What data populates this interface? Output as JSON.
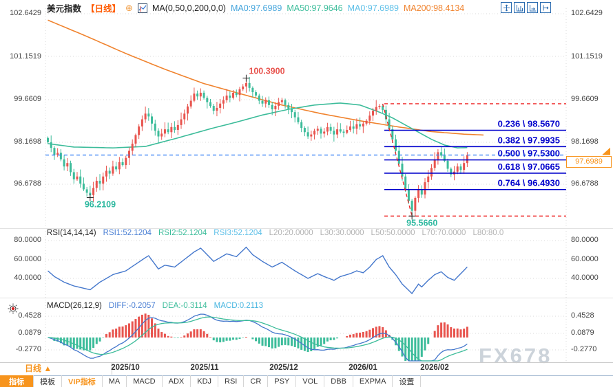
{
  "header": {
    "symbol": "美元指数",
    "period_tag": "【日线】",
    "ma_settings": "MA(0,50,0,200,0,0)",
    "ma_values": [
      {
        "label": "MA0:97.6989",
        "color": "#45a5dc"
      },
      {
        "label": "MA50:97.9646",
        "color": "#3dbd9b"
      },
      {
        "label": "MA0:97.6989",
        "color": "#5fc0e8"
      },
      {
        "label": "MA200:98.4134",
        "color": "#f0832e"
      }
    ]
  },
  "icons": {
    "header_buttons": [
      "pan-icon",
      "axis-zoom-icon",
      "axis-pan-icon",
      "jump-latest-icon"
    ],
    "add_indicator": "circle-plus-icon",
    "chart_type": "candlestick-icon",
    "alert": "refresh-alert-icon"
  },
  "price_axis": {
    "labels": [
      "102.6429",
      "101.1519",
      "99.6609",
      "98.1698",
      "96.6788"
    ]
  },
  "rsi_axis": {
    "labels": [
      "80.0000",
      "60.0000",
      "40.0000"
    ]
  },
  "macd_axis": {
    "labels": [
      "0.4528",
      "0.0879",
      "-0.2770"
    ]
  },
  "rsi_header": {
    "title": "RSI(14,14,14)",
    "tokens": [
      {
        "label": "RSI1:52.1204",
        "color": "#4a7fd4"
      },
      {
        "label": "RSI2:52.1204",
        "color": "#3dbd9b"
      },
      {
        "label": "RSI3:52.1204",
        "color": "#5fc0e8"
      },
      {
        "label": "L20:20.0000",
        "color": "#b3b3b3"
      },
      {
        "label": "L30:30.0000",
        "color": "#b3b3b3"
      },
      {
        "label": "L50:50.0000",
        "color": "#b3b3b3"
      },
      {
        "label": "L70:70.0000",
        "color": "#b3b3b3"
      },
      {
        "label": "L80:80.0",
        "color": "#b3b3b3"
      }
    ]
  },
  "macd_header": {
    "title": "MACD(26,12,9)",
    "tokens": [
      {
        "label": "DIFF:-0.2057",
        "color": "#4a7fd4"
      },
      {
        "label": "DEA:-0.3114",
        "color": "#3dbd9b"
      },
      {
        "label": "MACD:0.2113",
        "color": "#45b5e0"
      }
    ]
  },
  "x_axis": {
    "period_selector": "日线 ▲",
    "months": [
      "2025/10",
      "2025/11",
      "2025/12",
      "2026/01",
      "2026/02"
    ]
  },
  "bottom_tabs": [
    {
      "label": "指标",
      "state": "active"
    },
    {
      "label": "模板",
      "state": "normal"
    },
    {
      "label": "VIP指标",
      "state": "vip"
    },
    {
      "label": "MA",
      "state": "normal"
    },
    {
      "label": "MACD",
      "state": "normal"
    },
    {
      "label": "ADX",
      "state": "normal"
    },
    {
      "label": "KDJ",
      "state": "normal"
    },
    {
      "label": "RSI",
      "state": "normal"
    },
    {
      "label": "CR",
      "state": "normal"
    },
    {
      "label": "PSY",
      "state": "normal"
    },
    {
      "label": "VOL",
      "state": "normal"
    },
    {
      "label": "DBB",
      "state": "normal"
    },
    {
      "label": "EXPMA",
      "state": "normal"
    },
    {
      "label": "设置",
      "state": "normal"
    }
  ],
  "price_tag": "97.6989",
  "watermark": "FX678",
  "colors": {
    "up": "#e8544e",
    "down": "#3cbc9a",
    "ma50": "#3cbc9a",
    "ma200": "#f0832e",
    "fib": "#0000cc",
    "range_dash": "#ee2222",
    "price_line": "#3b82f6",
    "rsi": "#4477cc",
    "diff": "#4477cc",
    "dea": "#3cbc9a",
    "hist_up": "#e8544e",
    "hist_down": "#3cbc9a",
    "tag": "#f7941d",
    "grid": "#d9d9d9",
    "axis_text": "#444444"
  },
  "chart_data": {
    "type": "candlestick",
    "title": "美元指数 日线",
    "price_axis_ticks": [
      102.6429,
      101.1519,
      99.6609,
      98.1698,
      96.6788
    ],
    "current_price": 97.6989,
    "candles": {
      "first_open": 98.3,
      "closes": [
        98.15,
        97.95,
        97.7,
        97.78,
        97.55,
        97.3,
        97.42,
        97.1,
        96.85,
        96.95,
        96.7,
        96.5,
        96.38,
        96.3,
        96.55,
        96.8,
        96.7,
        96.95,
        97.15,
        97.05,
        97.3,
        97.2,
        97.45,
        97.35,
        97.6,
        97.85,
        98.1,
        98.4,
        98.7,
        98.95,
        99.15,
        99.05,
        98.8,
        98.55,
        98.35,
        98.45,
        98.6,
        98.5,
        98.68,
        98.58,
        98.75,
        98.95,
        99.15,
        99.4,
        99.6,
        99.85,
        99.75,
        99.88,
        99.7,
        99.55,
        99.42,
        99.25,
        99.35,
        99.5,
        99.62,
        99.78,
        99.7,
        99.88,
        99.8,
        100.0,
        100.1,
        100.22,
        100.05,
        99.9,
        99.78,
        99.6,
        99.5,
        99.62,
        99.45,
        99.3,
        99.42,
        99.55,
        99.62,
        99.45,
        99.32,
        99.2,
        99.02,
        98.85,
        98.65,
        98.5,
        98.35,
        98.42,
        98.55,
        98.62,
        98.45,
        98.52,
        98.68,
        98.55,
        98.42,
        98.6,
        98.52,
        98.48,
        98.58,
        98.7,
        98.62,
        98.78,
        98.7,
        98.8,
        98.9,
        99.08,
        99.25,
        99.38,
        99.42,
        99.28,
        98.95,
        98.6,
        98.25,
        97.85,
        97.4,
        96.95,
        96.5,
        96.1,
        95.75,
        96.2,
        96.5,
        96.32,
        96.75,
        96.95,
        97.25,
        97.55,
        97.8,
        97.68,
        97.5,
        97.22,
        97.02,
        97.12,
        97.3,
        97.18,
        97.42,
        97.6989
      ]
    },
    "key_points": [
      {
        "index": 61,
        "price": 100.39,
        "label": "100.3900",
        "color": "#e8544e",
        "position": "above"
      },
      {
        "index": 13,
        "price": 96.2109,
        "label": "96.2109",
        "color": "#2fb9a0",
        "position": "below"
      },
      {
        "index": 103,
        "price": 99.4939,
        "label": "",
        "color": "#ee2222",
        "position": "none"
      },
      {
        "index": 112,
        "price": 95.566,
        "label": "95.5660",
        "color": "#2fb9a0",
        "position": "below"
      }
    ],
    "fib_levels": [
      {
        "ratio": 0.236,
        "price": 98.567,
        "label": "0.236 \\ 98.5670"
      },
      {
        "ratio": 0.382,
        "price": 97.9935,
        "label": "0.382 \\ 97.9935"
      },
      {
        "ratio": 0.5,
        "price": 97.53,
        "label": "0.500 \\ 97.5300"
      },
      {
        "ratio": 0.618,
        "price": 97.0665,
        "label": "0.618 \\ 97.0665"
      },
      {
        "ratio": 0.764,
        "price": 96.493,
        "label": "0.764 \\ 96.4930"
      }
    ],
    "range_box": {
      "high": 99.4939,
      "low": 95.566,
      "from_index": 103,
      "to_index": 112
    },
    "ma50_anchors": [
      [
        0,
        98.1
      ],
      [
        8,
        97.98
      ],
      [
        20,
        97.95
      ],
      [
        30,
        98.0
      ],
      [
        40,
        98.3
      ],
      [
        50,
        98.62
      ],
      [
        58,
        98.85
      ],
      [
        66,
        99.1
      ],
      [
        74,
        99.3
      ],
      [
        82,
        99.45
      ],
      [
        90,
        99.52
      ],
      [
        96,
        99.45
      ],
      [
        102,
        99.2
      ],
      [
        106,
        99.0
      ],
      [
        110,
        98.75
      ],
      [
        114,
        98.5
      ],
      [
        118,
        98.25
      ],
      [
        122,
        98.05
      ],
      [
        126,
        97.95
      ],
      [
        129,
        97.96
      ]
    ],
    "ma200_anchors": [
      [
        0,
        102.42
      ],
      [
        12,
        101.85
      ],
      [
        24,
        101.25
      ],
      [
        36,
        100.7
      ],
      [
        48,
        100.2
      ],
      [
        60,
        99.82
      ],
      [
        72,
        99.45
      ],
      [
        84,
        99.15
      ],
      [
        96,
        98.9
      ],
      [
        108,
        98.68
      ],
      [
        118,
        98.52
      ],
      [
        128,
        98.43
      ],
      [
        134,
        98.4
      ]
    ],
    "rsi": {
      "params": [
        14,
        14,
        14
      ],
      "ticks": [
        80,
        60,
        40
      ],
      "anchors": [
        [
          0,
          48
        ],
        [
          2,
          42
        ],
        [
          5,
          36
        ],
        [
          8,
          32
        ],
        [
          13,
          28
        ],
        [
          16,
          36
        ],
        [
          20,
          44
        ],
        [
          24,
          48
        ],
        [
          27,
          55
        ],
        [
          30,
          62
        ],
        [
          31,
          64
        ],
        [
          34,
          50
        ],
        [
          36,
          54
        ],
        [
          39,
          52
        ],
        [
          45,
          68
        ],
        [
          47,
          72
        ],
        [
          51,
          58
        ],
        [
          55,
          66
        ],
        [
          58,
          63
        ],
        [
          61,
          73
        ],
        [
          63,
          65
        ],
        [
          66,
          58
        ],
        [
          69,
          52
        ],
        [
          72,
          57
        ],
        [
          76,
          48
        ],
        [
          80,
          40
        ],
        [
          83,
          45
        ],
        [
          85,
          42
        ],
        [
          88,
          38
        ],
        [
          90,
          42
        ],
        [
          93,
          45
        ],
        [
          95,
          48
        ],
        [
          97,
          46
        ],
        [
          99,
          52
        ],
        [
          101,
          60
        ],
        [
          103,
          64
        ],
        [
          105,
          52
        ],
        [
          107,
          44
        ],
        [
          109,
          34
        ],
        [
          112,
          24
        ],
        [
          114,
          34
        ],
        [
          115,
          31
        ],
        [
          117,
          38
        ],
        [
          119,
          44
        ],
        [
          121,
          47
        ],
        [
          123,
          41
        ],
        [
          125,
          38
        ],
        [
          127,
          45
        ],
        [
          129,
          52.12
        ]
      ]
    },
    "macd": {
      "params": [
        26,
        12,
        9
      ],
      "ticks": [
        0.4528,
        0.0879,
        -0.277
      ],
      "latest": {
        "diff": -0.2057,
        "dea": -0.3114,
        "macd": 0.2113
      }
    }
  }
}
